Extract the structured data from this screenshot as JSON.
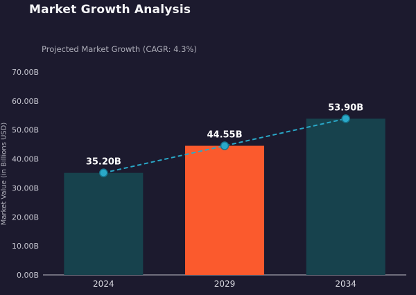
{
  "page": {
    "background": "#1c1a2e"
  },
  "chart_data": {
    "type": "bar",
    "title": "Market Growth Analysis",
    "subtitle": "Projected Market Growth (CAGR: 4.3%)",
    "ylabel": "Market Value (in Billions USD)",
    "xlabel": "",
    "categories": [
      "2024",
      "2029",
      "2034"
    ],
    "values": [
      35.2,
      44.55,
      53.9
    ],
    "value_labels": [
      "35.20B",
      "44.55B",
      "53.90B"
    ],
    "bar_colors": [
      "#17424d",
      "#fb5a2d",
      "#17424d"
    ],
    "line_overlay": {
      "type": "line",
      "color": "#2aa9c9",
      "style": "dashed",
      "markers": true,
      "marker_color": "#2aa9c9",
      "marker_stroke": "#17768f"
    },
    "ylim": [
      0,
      70
    ],
    "yticks": [
      {
        "value": 0,
        "label": "0.00B"
      },
      {
        "value": 10,
        "label": "10.00B"
      },
      {
        "value": 20,
        "label": "20.00B"
      },
      {
        "value": 30,
        "label": "30.00B"
      },
      {
        "value": 40,
        "label": "40.00B"
      },
      {
        "value": 50,
        "label": "50.00B"
      },
      {
        "value": 60,
        "label": "60.00B"
      },
      {
        "value": 70,
        "label": "70.00B"
      }
    ],
    "grid": false,
    "legend": false,
    "axis_line_color": "#c2c2ca",
    "background": "#1c1a2e"
  }
}
